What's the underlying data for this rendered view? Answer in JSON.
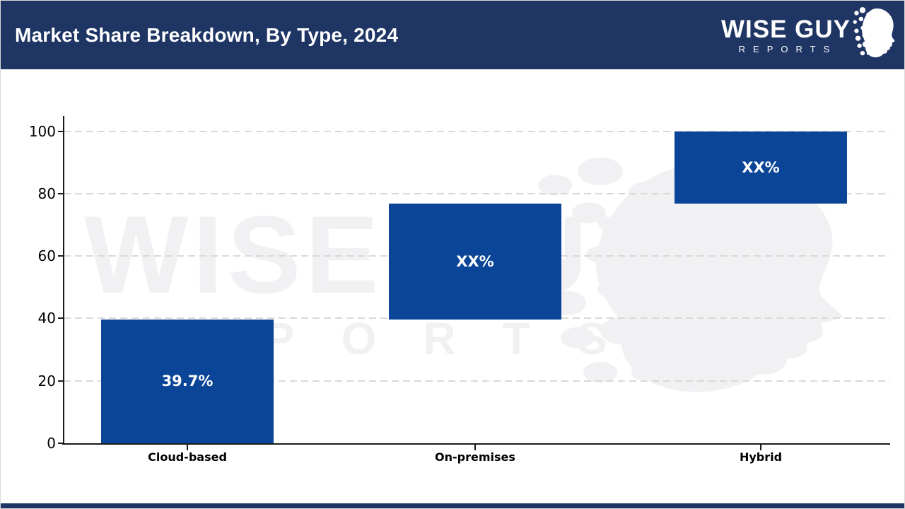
{
  "header": {
    "title": "Market Share Breakdown, By Type, 2024",
    "brand": {
      "name_line": "WISE GUY",
      "reports_line": "REPORTS"
    }
  },
  "watermark": {
    "name_line": "WISE GUY",
    "reports_line": "REPORTS"
  },
  "colors": {
    "header_bg": "#1f3564",
    "footer_bg": "#1f3564",
    "bar_fill": "#0b4598",
    "bar_label": "#ffffff",
    "gridline": "#d9d9d9",
    "axis": "#1a1a1a",
    "tick_label": "#000000",
    "watermark": "#f1f1f3"
  },
  "chart_data": {
    "type": "bar",
    "subtype": "waterfall",
    "title": "Market Share Breakdown, By Type, 2024",
    "categories": [
      "Cloud-based",
      "On-premises",
      "Hybrid"
    ],
    "segments": [
      {
        "category": "Cloud-based",
        "start": 0,
        "end": 39.7,
        "label": "39.7%"
      },
      {
        "category": "On-premises",
        "start": 39.7,
        "end": 76.9,
        "label": "XX%"
      },
      {
        "category": "Hybrid",
        "start": 76.9,
        "end": 100,
        "label": "XX%"
      }
    ],
    "ylim": [
      0,
      100
    ],
    "yticks": [
      0,
      20,
      40,
      60,
      80,
      100
    ],
    "xlabel": "",
    "ylabel": "",
    "grid": "horizontal-dashed",
    "legend": "none"
  }
}
